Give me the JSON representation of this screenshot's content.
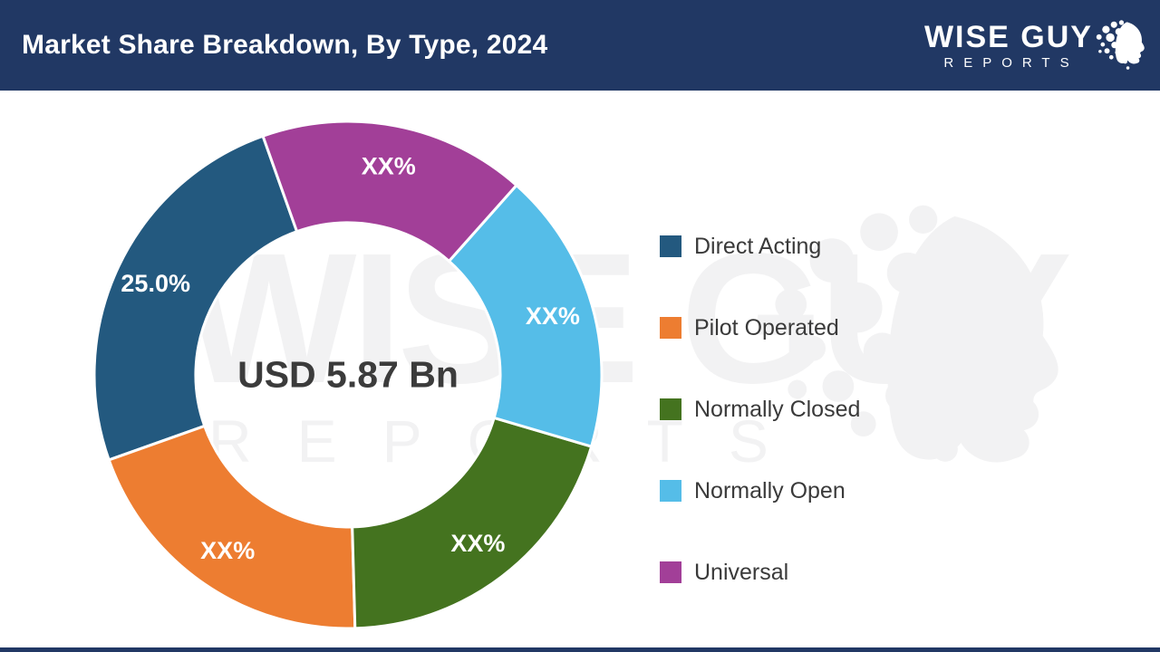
{
  "header": {
    "title": "Market Share Breakdown, By Type, 2024",
    "bg_color": "#213864",
    "logo": {
      "line1": "WISE GUY",
      "line2": "REPORTS",
      "face_icon": "face-profile-dots-icon"
    }
  },
  "watermark": {
    "line1": "WISE GUY",
    "line2": "REPORTS",
    "color": "#f2f2f3"
  },
  "chart_data": {
    "type": "pie",
    "subtype": "donut",
    "title": "Market Share Breakdown, By Type, 2024",
    "center_label": "USD 5.87 Bn",
    "units": "percent of market",
    "legend_position": "right",
    "start_angle_deg_from_top": 340.4,
    "direction": "counterclockwise",
    "inner_radius_ratio": 0.6,
    "series": [
      {
        "name": "Direct Acting",
        "value_pct": 25.0,
        "slice_label": "25.0%",
        "color": "#23597f"
      },
      {
        "name": "Pilot Operated",
        "value_pct": 20.0,
        "slice_label": "XX%",
        "color": "#ed7d31"
      },
      {
        "name": "Normally Closed",
        "value_pct": 20.0,
        "slice_label": "XX%",
        "color": "#44731f"
      },
      {
        "name": "Normally Open",
        "value_pct": 18.0,
        "slice_label": "XX%",
        "color": "#55bde8"
      },
      {
        "name": "Universal",
        "value_pct": 17.0,
        "slice_label": "XX%",
        "color": "#a23f98"
      }
    ]
  }
}
